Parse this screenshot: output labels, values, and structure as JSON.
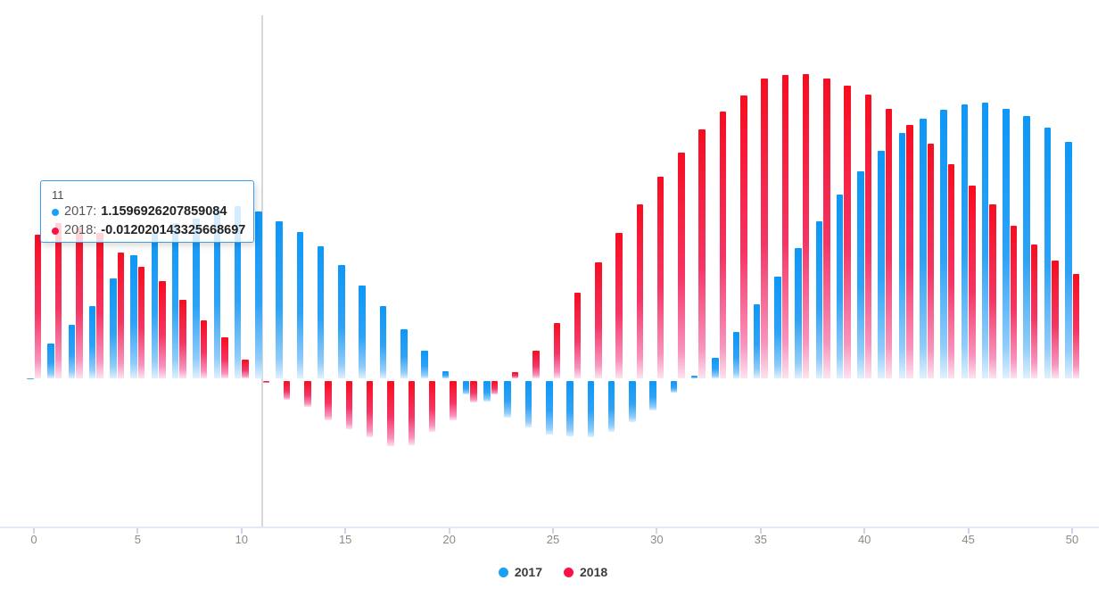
{
  "chart_data": {
    "type": "bar",
    "title": "",
    "xlabel": "",
    "ylabel": "",
    "grid": false,
    "legend_position": "bottom",
    "background": "#ffffff",
    "ylim": [
      -0.6,
      2.3
    ],
    "categories": [
      0,
      1,
      2,
      3,
      4,
      5,
      6,
      7,
      8,
      9,
      10,
      11,
      12,
      13,
      14,
      15,
      16,
      17,
      18,
      19,
      20,
      21,
      22,
      23,
      24,
      25,
      26,
      27,
      28,
      29,
      30,
      31,
      32,
      33,
      34,
      35,
      36,
      37,
      38,
      39,
      40,
      41,
      42,
      43,
      44,
      45,
      46,
      47,
      48,
      49,
      50
    ],
    "x_tick_labels": [
      "0",
      "5",
      "10",
      "15",
      "20",
      "25",
      "30",
      "35",
      "40",
      "45",
      "50"
    ],
    "x_ticks": [
      0,
      5,
      10,
      15,
      20,
      25,
      30,
      35,
      40,
      45,
      50
    ],
    "series": [
      {
        "name": "2017",
        "marker_color": "#18a0f6",
        "gradient": [
          "#0d97f7",
          "#2ea2f5",
          "#90ccfa",
          "#dff1fe"
        ],
        "values": [
          0.01,
          0.25,
          0.38,
          0.51,
          0.7,
          0.86,
          1.01,
          1.08,
          1.11,
          1.17,
          1.2,
          1.1596926207859084,
          1.09,
          1.02,
          0.92,
          0.79,
          0.65,
          0.51,
          0.35,
          0.2,
          0.06,
          -0.1,
          -0.15,
          -0.26,
          -0.33,
          -0.38,
          -0.39,
          -0.4,
          -0.36,
          -0.29,
          -0.21,
          -0.09,
          0.03,
          0.15,
          0.33,
          0.52,
          0.71,
          0.91,
          1.09,
          1.28,
          1.44,
          1.58,
          1.7,
          1.8,
          1.86,
          1.9,
          1.91,
          1.87,
          1.82,
          1.74,
          1.64
        ]
      },
      {
        "name": "2018",
        "marker_color": "#fb1148",
        "gradient": [
          "#f70d1f",
          "#f43564",
          "#f893be",
          "#fde3ef"
        ],
        "values": [
          1.0,
          1.08,
          1.05,
          1.01,
          0.88,
          0.78,
          0.68,
          0.55,
          0.41,
          0.29,
          0.14,
          -0.012020143325668697,
          -0.14,
          -0.19,
          -0.28,
          -0.34,
          -0.4,
          -0.46,
          -0.45,
          -0.36,
          -0.28,
          -0.16,
          -0.1,
          0.05,
          0.2,
          0.39,
          0.6,
          0.81,
          1.01,
          1.21,
          1.4,
          1.57,
          1.73,
          1.85,
          1.96,
          2.08,
          2.1,
          2.11,
          2.08,
          2.03,
          1.97,
          1.87,
          1.76,
          1.63,
          1.49,
          1.34,
          1.21,
          1.06,
          0.93,
          0.82,
          0.73
        ]
      }
    ]
  },
  "crosshair": {
    "category": 11,
    "color": "#d8d8d8"
  },
  "tooltip": {
    "title": "11",
    "border_color": "#3d9de9",
    "rows": [
      {
        "label": "2017:",
        "value": "1.1596926207859084"
      },
      {
        "label": "2018:",
        "value": "-0.012020143325668697"
      }
    ]
  },
  "axis": {
    "line_color": "#e3e9f3",
    "tick_color": "#c9d6ea",
    "label_color": "#8a8a8a"
  }
}
